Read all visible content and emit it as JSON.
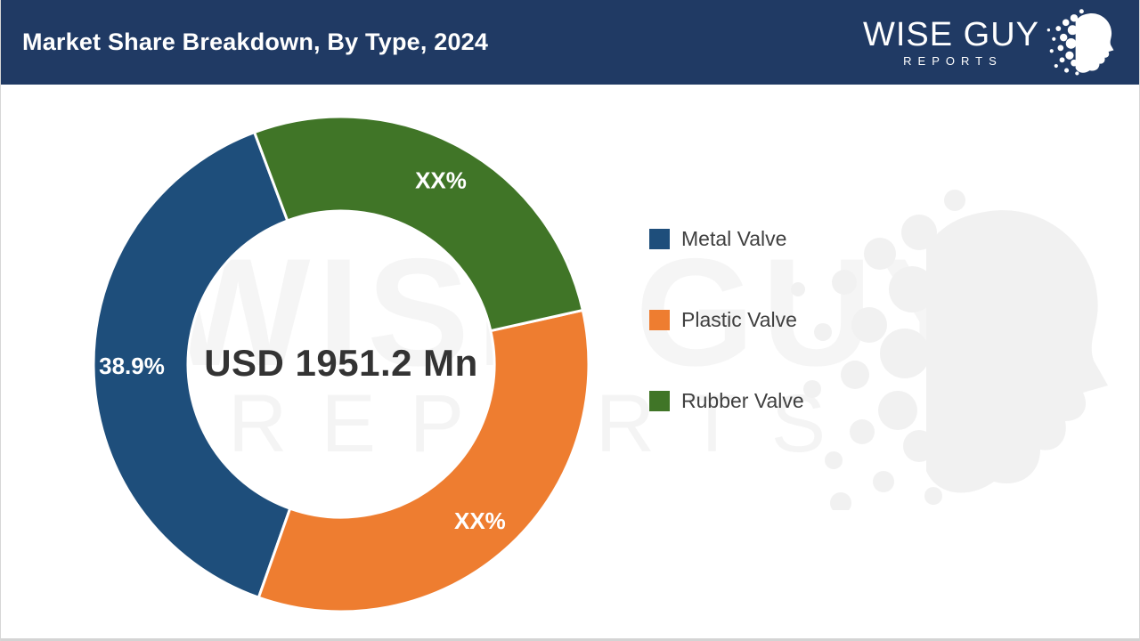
{
  "header": {
    "title": "Market Share Breakdown, By Type, 2024",
    "logo": {
      "line1": "WISE GUY",
      "line2": "REPORTS"
    }
  },
  "watermark": {
    "line1": "WISE GUY",
    "line2": "REPORTS"
  },
  "chart_data": {
    "type": "pie",
    "subtype": "donut",
    "title": "Market Share Breakdown, By Type, 2024",
    "center_label": "USD 1951.2 Mn",
    "legend_position": "right",
    "start_angle_deg": 110.5,
    "direction": "counterclockwise",
    "series": [
      {
        "name": "Metal Valve",
        "value_pct": 38.9,
        "slice_label": "38.9%",
        "color": "#1e4e7b"
      },
      {
        "name": "Plastic Valve",
        "value_pct": 33.9,
        "slice_label": "XX%",
        "color": "#ee7d30"
      },
      {
        "name": "Rubber Valve",
        "value_pct": 27.2,
        "slice_label": "XX%",
        "color": "#407527"
      }
    ]
  },
  "colors": {
    "header_bg": "#203a64",
    "center_text": "#333333",
    "legend_text": "#404040",
    "watermark": "#f4f4f4"
  }
}
